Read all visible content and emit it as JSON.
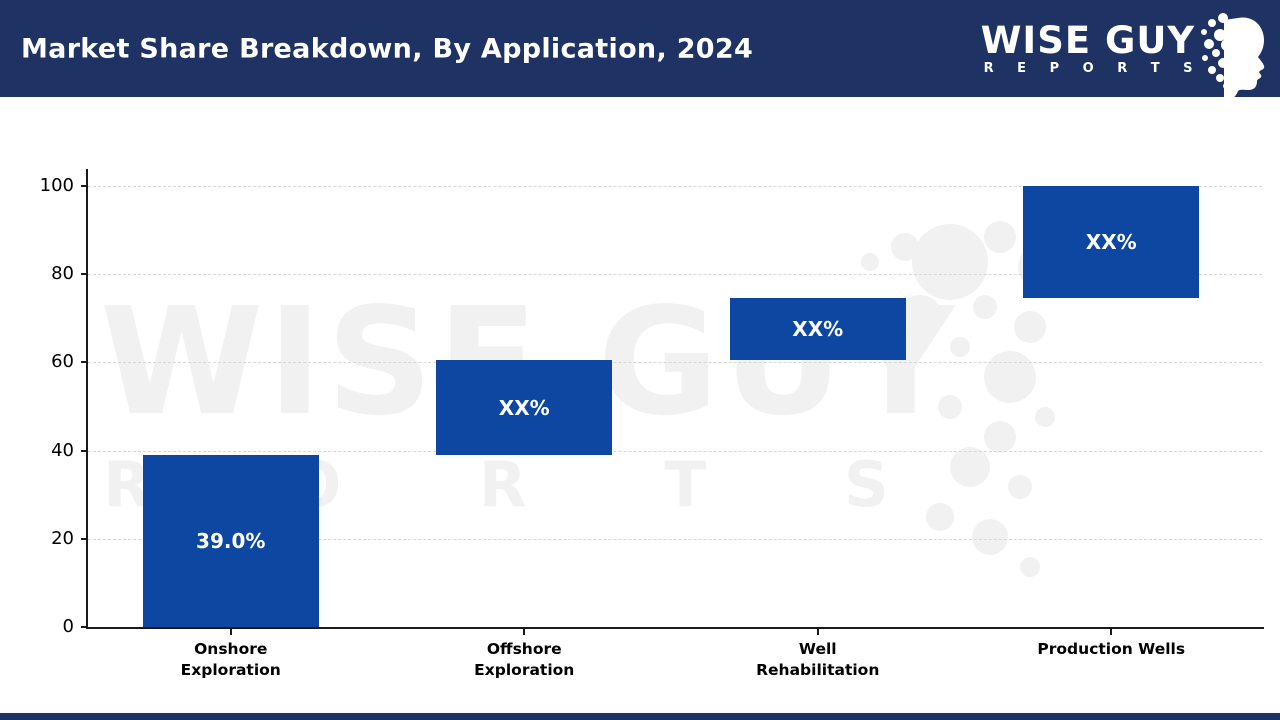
{
  "header": {
    "title": "Market Share Breakdown, By Application, 2024",
    "background": "#1e3263",
    "logo": {
      "line1": "WISE GUY",
      "line2": "R E P O R T S"
    }
  },
  "watermark": {
    "line1": "WISE GUY",
    "line2": "R O R T S"
  },
  "chart_data": {
    "type": "bar",
    "subtype": "waterfall",
    "title": "Market Share Breakdown, By Application, 2024",
    "categories": [
      [
        "Onshore",
        "Exploration"
      ],
      [
        "Offshore",
        "Exploration"
      ],
      [
        "Well",
        "Rehabilitation"
      ],
      [
        "Production Wells"
      ]
    ],
    "segments": [
      {
        "start": 0,
        "end": 39,
        "label": "39.0%"
      },
      {
        "start": 39,
        "end": 60.5,
        "label": "XX%"
      },
      {
        "start": 60.5,
        "end": 74.5,
        "label": "XX%"
      },
      {
        "start": 74.5,
        "end": 100,
        "label": "XX%"
      }
    ],
    "yticks": [
      0,
      20,
      40,
      60,
      80,
      100
    ],
    "ylim": [
      0,
      100
    ],
    "grid": "horizontal-dashed",
    "legend": "none",
    "bar_color": "#0d47a1",
    "bar_label_color": "#ffffff",
    "axis_color": "#1a1a1a",
    "grid_color": "#d7d7d7"
  },
  "footer": {
    "background": "#1e3263"
  }
}
